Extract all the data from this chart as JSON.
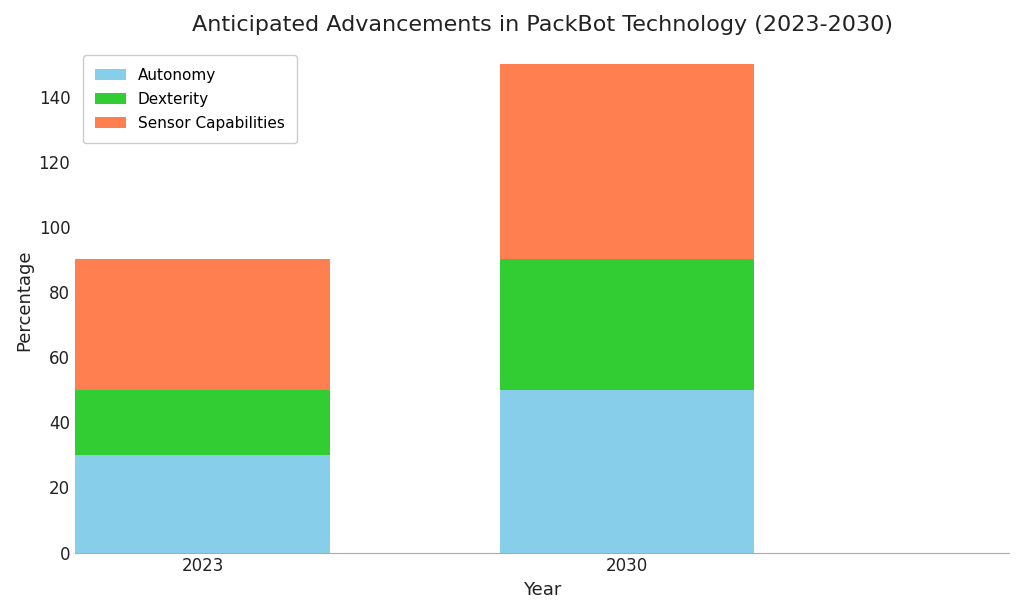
{
  "title": "Anticipated Advancements in PackBot Technology (2023-2030)",
  "xlabel": "Year",
  "ylabel": "Percentage",
  "categories": [
    "2023",
    "2030"
  ],
  "series": {
    "Autonomy": [
      30,
      50
    ],
    "Dexterity": [
      20,
      40
    ],
    "Sensor Capabilities": [
      40,
      60
    ]
  },
  "colors": {
    "Autonomy": "#87CEEB",
    "Dexterity": "#32CD32",
    "Sensor Capabilities": "#FF7F50"
  },
  "ylim": [
    0,
    155
  ],
  "yticks": [
    0,
    20,
    40,
    60,
    80,
    100,
    120,
    140
  ],
  "bar_width": 0.6,
  "background_color": "#ffffff",
  "title_fontsize": 16,
  "axis_label_fontsize": 13,
  "tick_fontsize": 12,
  "legend_fontsize": 11
}
